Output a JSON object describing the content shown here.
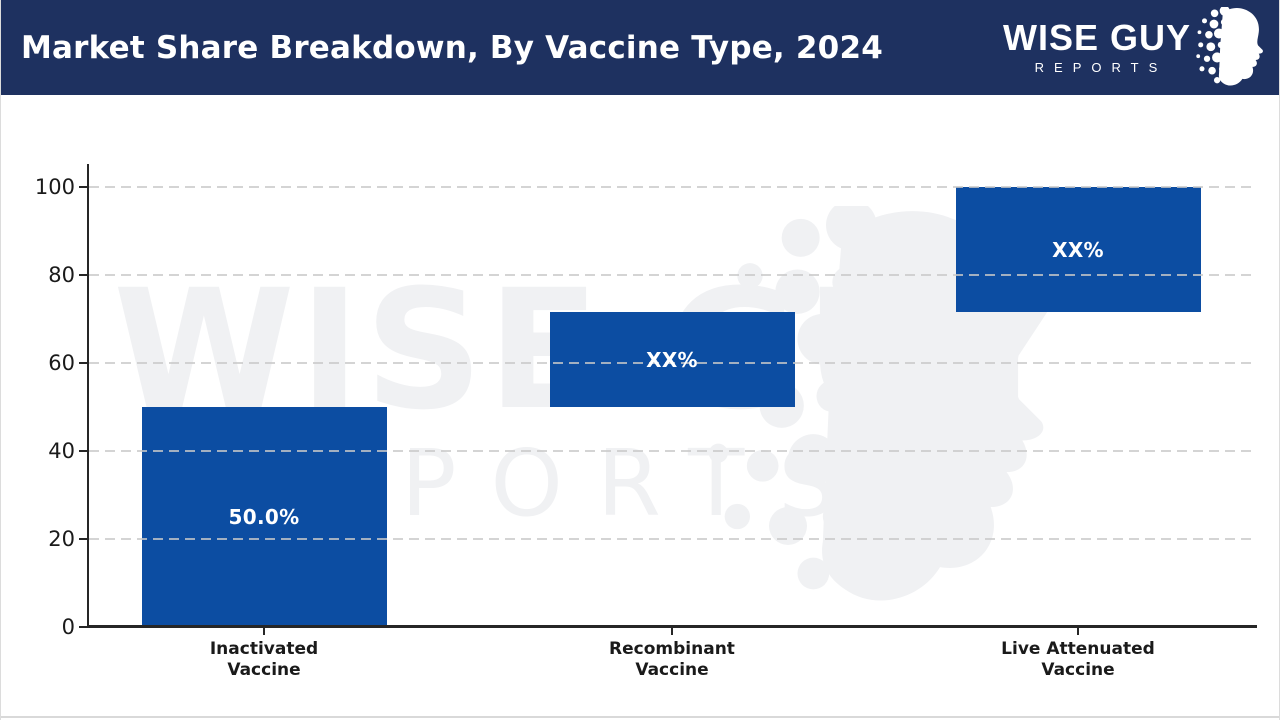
{
  "header": {
    "title": "Market Share Breakdown, By Vaccine Type, 2024",
    "background_color": "#1e3160",
    "logo": {
      "wordmark": "WISE GUY",
      "subtitle": "REPORTS"
    }
  },
  "watermark": {
    "wordmark": "WISE GUY",
    "subtitle": "REPORTS"
  },
  "chart_data": {
    "type": "bar",
    "variant": "waterfall-floating-bars",
    "title": "Market Share Breakdown, By Vaccine Type, 2024",
    "categories": [
      "Inactivated Vaccine",
      "Recombinant Vaccine",
      "Live Attenuated Vaccine"
    ],
    "bars": [
      {
        "category": "Inactivated Vaccine",
        "category_lines": [
          "Inactivated",
          "Vaccine"
        ],
        "start": 0,
        "end": 50,
        "value": 50,
        "label": "50.0%"
      },
      {
        "category": "Recombinant Vaccine",
        "category_lines": [
          "Recombinant",
          "Vaccine"
        ],
        "start": 50,
        "end": 71.5,
        "value": 21.5,
        "label": "XX%"
      },
      {
        "category": "Live Attenuated Vaccine",
        "category_lines": [
          "Live Attenuated",
          "Vaccine"
        ],
        "start": 71.5,
        "end": 100,
        "value": 28.5,
        "label": "XX%"
      }
    ],
    "yticks": [
      0,
      20,
      40,
      60,
      80,
      100
    ],
    "ylim": [
      0,
      105
    ],
    "xlabel": "",
    "ylabel": "",
    "bar_color": "#0c4da2",
    "grid": "dashed-horizontal",
    "legend": "none"
  }
}
